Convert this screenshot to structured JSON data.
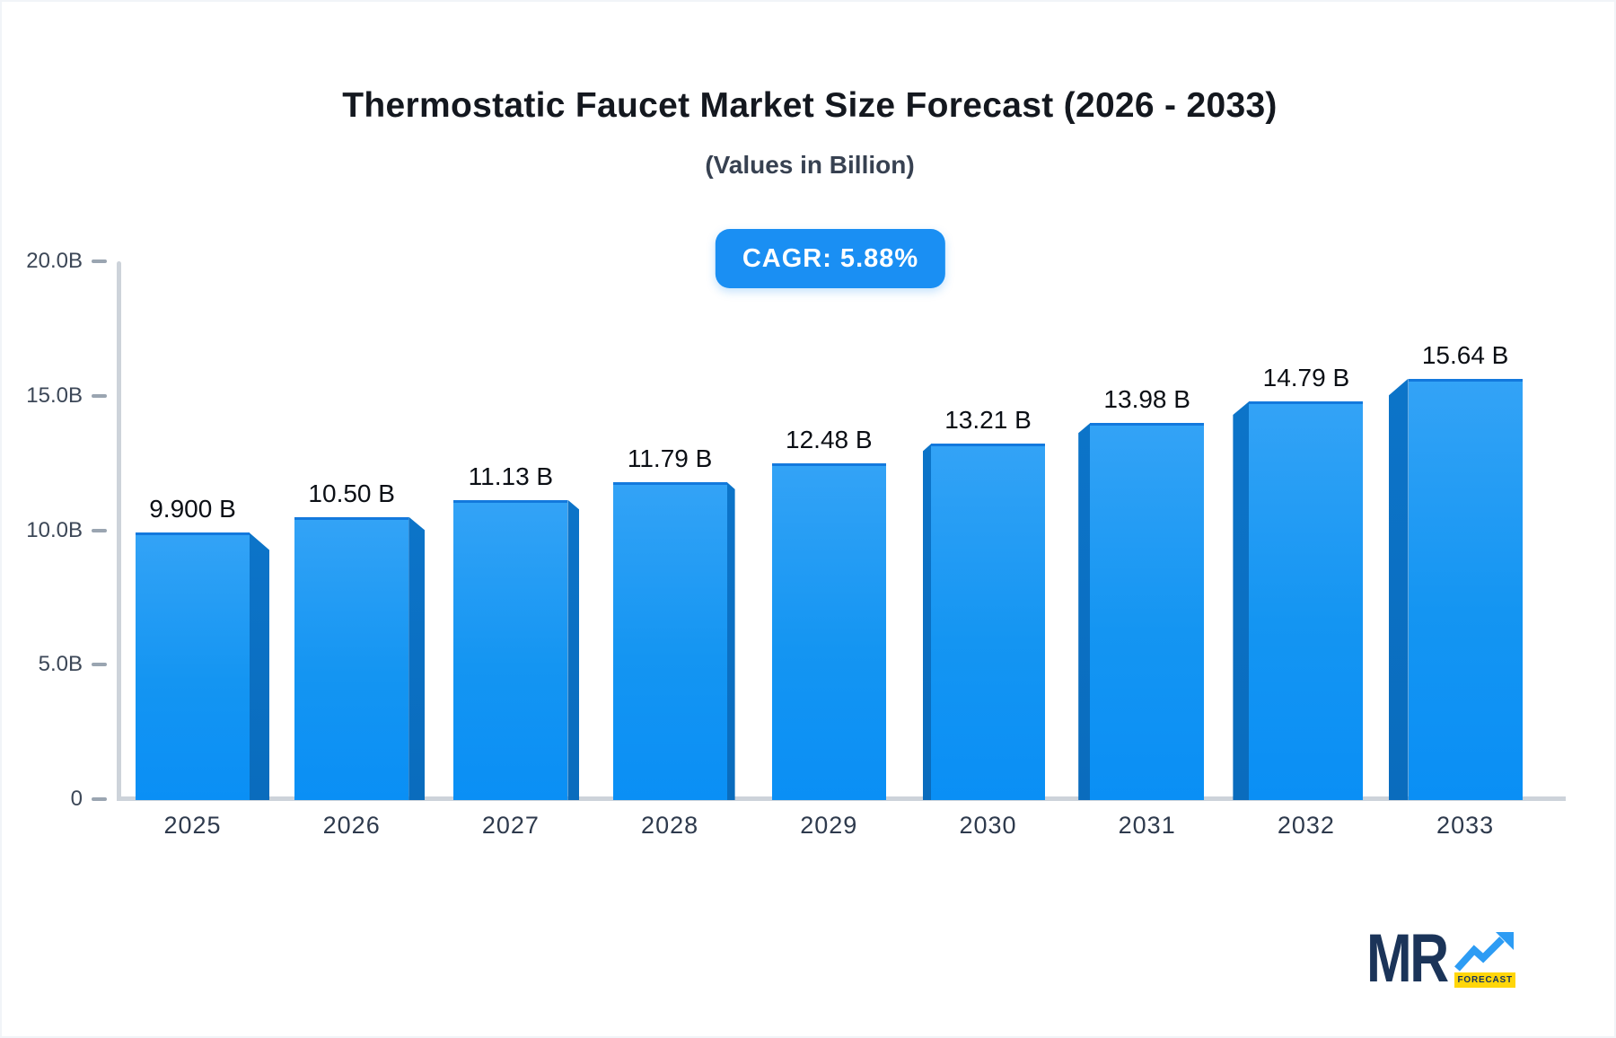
{
  "header": {
    "title": "Thermostatic Faucet Market Size Forecast (2026 - 2033)",
    "subtitle": "(Values in Billion)",
    "cagr_label": "CAGR: 5.88%"
  },
  "chart_data": {
    "type": "bar",
    "title": "Thermostatic Faucet Market Size Forecast (2026 - 2033)",
    "subtitle": "(Values in Billion)",
    "unit": "Billion",
    "cagr_percent": 5.88,
    "categories": [
      "2025",
      "2026",
      "2027",
      "2028",
      "2029",
      "2030",
      "2031",
      "2032",
      "2033"
    ],
    "values": [
      9.9,
      10.5,
      11.13,
      11.79,
      12.48,
      13.21,
      13.98,
      14.79,
      15.64
    ],
    "value_labels": [
      "9.900 B",
      "10.50 B",
      "11.13 B",
      "11.79 B",
      "12.48 B",
      "13.21 B",
      "13.98 B",
      "14.79 B",
      "15.64 B"
    ],
    "yticks": [
      {
        "label": "20.0B",
        "value": 20
      },
      {
        "label": "15.0B",
        "value": 15
      },
      {
        "label": "10.0B",
        "value": 10
      },
      {
        "label": "5.0B",
        "value": 5
      },
      {
        "label": "0",
        "value": 0
      }
    ],
    "ylim": [
      0,
      20
    ],
    "grid": false,
    "legend": false,
    "colors": {
      "bar_top": "#33a3f6",
      "bar_bottom": "#0a8ff5",
      "bar_side": "#0b70c4",
      "bar_top_edge": "#1379dd",
      "axis": "#cdd3da",
      "tick": "#9aa5b1",
      "badge_bg": "#1a8ff3",
      "badge_text": "#ffffff"
    }
  },
  "logo": {
    "brand": "MR",
    "tagline": "FORECAST",
    "arrow_icon": "trend-up-arrow-icon",
    "brand_color": "#1b3459",
    "tagline_bg": "#ffd60a",
    "arrow_color": "#2d9cf4"
  }
}
